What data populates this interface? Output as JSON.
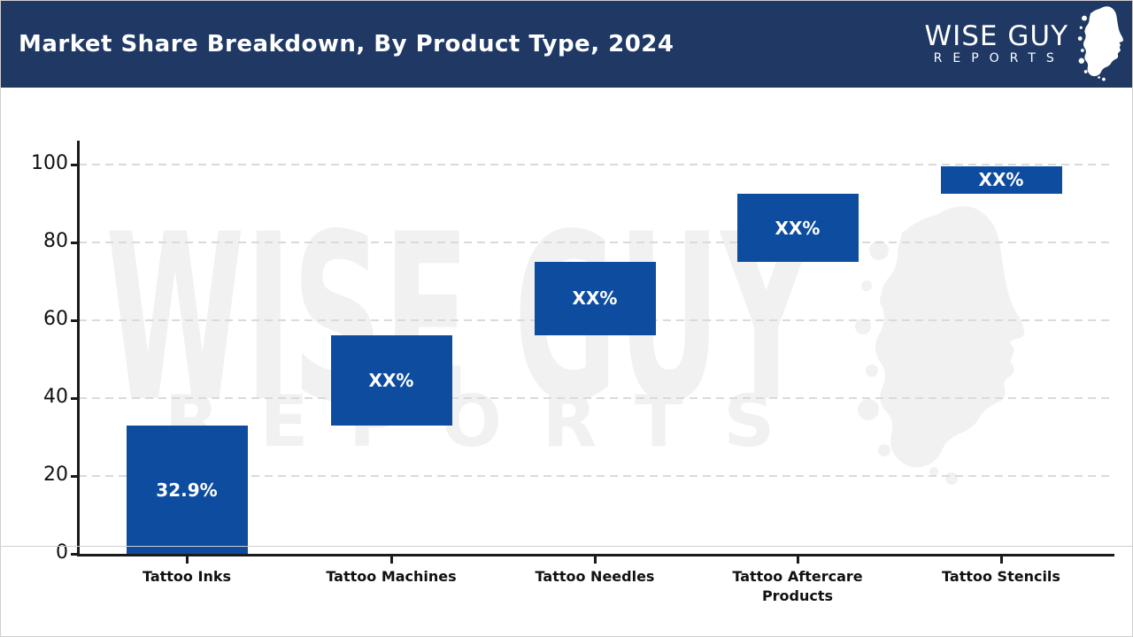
{
  "header": {
    "title": "Market Share Breakdown, By Product Type, 2024",
    "logo": {
      "line1": "WISE GUY",
      "line2": "REPORTS"
    }
  },
  "watermark": {
    "line1": "WISE GUY",
    "line2": "REPORTS"
  },
  "colors": {
    "header_bg": "#1f3864",
    "bar": "#0e4c9f",
    "grid": "#dadada",
    "axis": "#1a1a1a",
    "bar_label": "#ffffff",
    "watermark": "#f1f1f1"
  },
  "chart_data": {
    "type": "bar",
    "subtype": "waterfall",
    "title": "Market Share Breakdown, By Product Type, 2024",
    "categories": [
      "Tattoo Inks",
      "Tattoo Machines",
      "Tattoo Needles",
      "Tattoo Aftercare Products",
      "Tattoo Stencils"
    ],
    "segments": [
      {
        "category": "Tattoo Inks",
        "start": 0,
        "end": 32.9,
        "label": "32.9%"
      },
      {
        "category": "Tattoo Machines",
        "start": 32.9,
        "end": 56.2,
        "label": "XX%"
      },
      {
        "category": "Tattoo Needles",
        "start": 56.2,
        "end": 75.0,
        "label": "XX%"
      },
      {
        "category": "Tattoo Aftercare Products",
        "start": 75.0,
        "end": 92.5,
        "label": "XX%"
      },
      {
        "category": "Tattoo Stencils",
        "start": 92.5,
        "end": 99.6,
        "label": "XX%"
      }
    ],
    "yticks": [
      0,
      20,
      40,
      60,
      80,
      100
    ],
    "ylim": [
      0,
      106
    ],
    "xlabel": "",
    "ylabel": "",
    "grid": "horizontal-dashed",
    "legend": "none",
    "bar_color": "#0e4c9f"
  }
}
